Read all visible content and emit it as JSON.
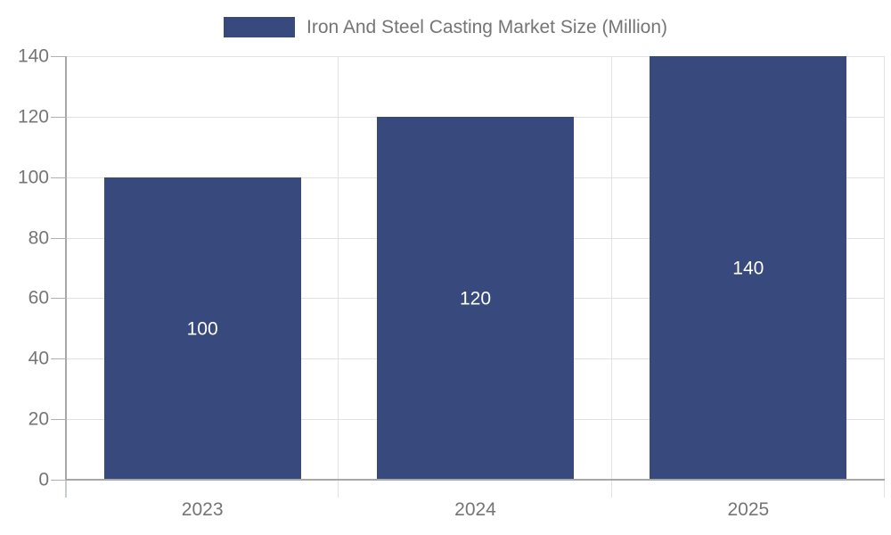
{
  "legend": {
    "label": "Iron And Steel Casting Market Size (Million)",
    "swatch_color": "#38497e"
  },
  "chart_data": {
    "type": "bar",
    "title": "Iron And Steel Casting Market Size (Million)",
    "categories": [
      "2023",
      "2024",
      "2025"
    ],
    "series": [
      {
        "name": "Iron And Steel Casting Market Size (Million)",
        "values": [
          100,
          120,
          140
        ]
      }
    ],
    "bar_labels": [
      "100",
      "120",
      "140"
    ],
    "xlabel": "",
    "ylabel": "",
    "ylim": [
      0,
      140
    ],
    "yticks": [
      0,
      20,
      40,
      60,
      80,
      100,
      120,
      140
    ],
    "grid": true,
    "legend_position": "top-center",
    "colors": {
      "bar": "#38497e",
      "grid": "#e2e2e2",
      "axis": "#a7a7a7",
      "tick_text": "#757575",
      "bar_label_text": "#ffffff"
    }
  }
}
